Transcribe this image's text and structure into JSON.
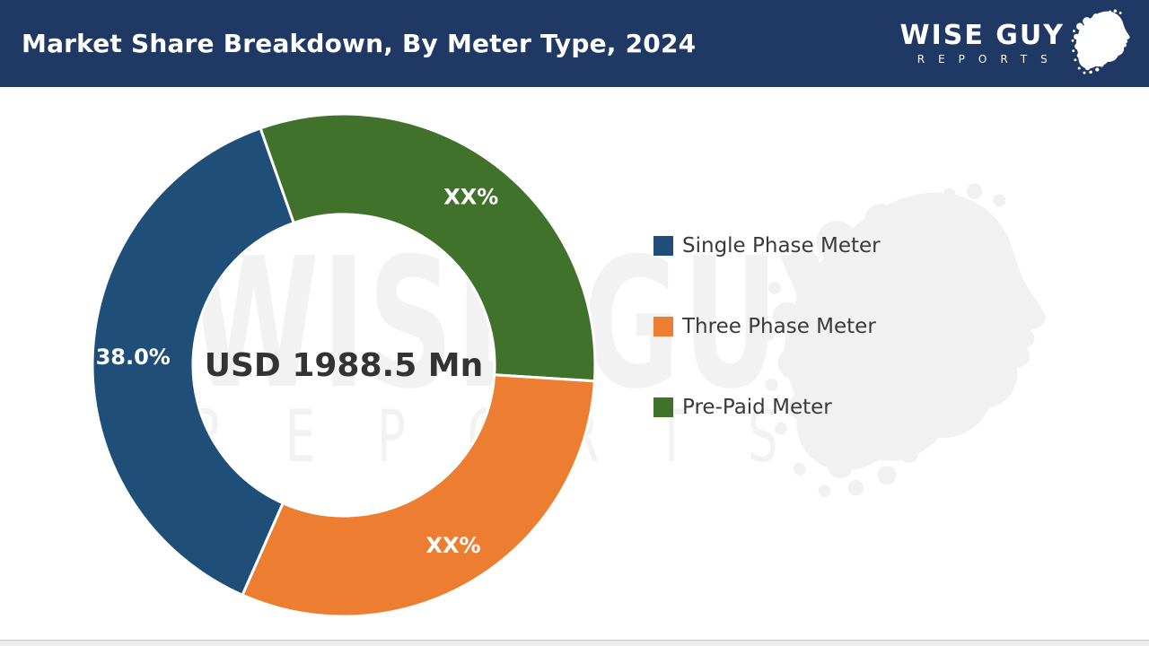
{
  "header": {
    "title": "Market Share Breakdown, By Meter Type, 2024",
    "bg_color": "#1f3864",
    "logo": {
      "line1": "WISE GUY",
      "line2": "REPORTS"
    }
  },
  "watermark": {
    "line1": "WISE GUY",
    "line2": "REPORTS",
    "color": "#f2f2f2"
  },
  "chart_data": {
    "type": "pie",
    "subtype": "donut",
    "title": "Market Share Breakdown, By Meter Type, 2024",
    "center_label": "USD 1988.5 Mn",
    "start_angle_deg": -19.4,
    "legend_position": "right",
    "series": [
      {
        "name": "Pre-Paid Meter",
        "display_label": "XX%",
        "value_pct_est": 31.4,
        "color": "#40722b"
      },
      {
        "name": "Three Phase Meter",
        "display_label": "XX%",
        "value_pct_est": 30.6,
        "color": "#ec7d31"
      },
      {
        "name": "Single Phase Meter",
        "display_label": "38.0%",
        "value_pct_est": 38.0,
        "color": "#1f4e79"
      }
    ]
  },
  "legend": {
    "items": [
      {
        "label": "Single Phase Meter",
        "color": "#1f4e79"
      },
      {
        "label": "Three Phase Meter",
        "color": "#ec7d31"
      },
      {
        "label": "Pre-Paid Meter",
        "color": "#40722b"
      }
    ]
  }
}
